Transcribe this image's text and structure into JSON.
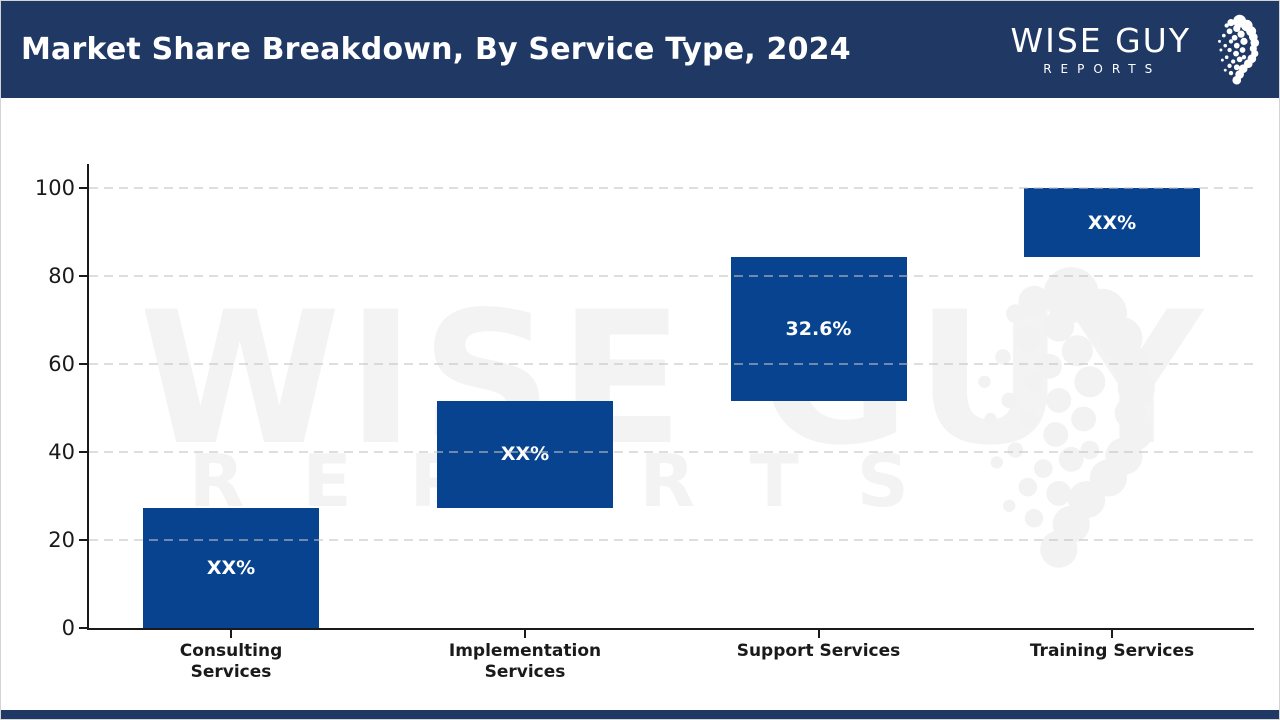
{
  "header": {
    "title": "Market Share Breakdown, By Service Type, 2024",
    "brand": {
      "name": "WISE GUY",
      "sub": "REPORTS"
    }
  },
  "watermark": {
    "text_top": "WISE GUY",
    "text_bottom": "REPORTS"
  },
  "colors": {
    "header_bg": "#1f3864",
    "footer_bg": "#1f3864",
    "bar": "#07438f",
    "bar_label": "#ffffff",
    "axis": "#1a1a1a",
    "grid": "#d9d9d9",
    "watermark": "#f2f2f2",
    "title_text": "#ffffff"
  },
  "chart_data": {
    "type": "bar",
    "subtype": "floating-stacked-waterfall",
    "title": "Market Share Breakdown, By Service Type, 2024",
    "categories": [
      "Consulting Services",
      "Implementation Services",
      "Support Services",
      "Training Services"
    ],
    "category_label_lines": [
      [
        "Consulting",
        "Services"
      ],
      [
        "Implementation",
        "Services"
      ],
      [
        "Support Services"
      ],
      [
        "Training Services"
      ]
    ],
    "bars": [
      {
        "category": "Consulting Services",
        "start": 0,
        "end": 27.2,
        "value": 27.2,
        "label": "XX%"
      },
      {
        "category": "Implementation Services",
        "start": 27.2,
        "end": 51.7,
        "value": 24.5,
        "label": "XX%"
      },
      {
        "category": "Support Services",
        "start": 51.7,
        "end": 84.3,
        "value": 32.6,
        "label": "32.6%"
      },
      {
        "category": "Training Services",
        "start": 84.3,
        "end": 100,
        "value": 15.7,
        "label": "XX%"
      }
    ],
    "xlabel": "",
    "ylabel": "",
    "y_ticks": [
      0,
      20,
      40,
      60,
      80,
      100
    ],
    "ylim": [
      0,
      105.5
    ],
    "grid": "horizontal-dashed",
    "legend": null
  }
}
